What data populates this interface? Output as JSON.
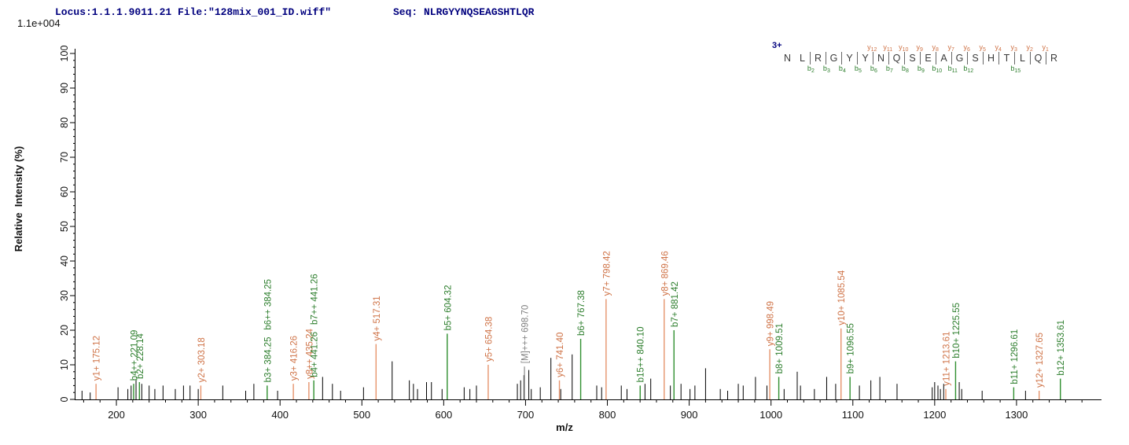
{
  "header": {
    "locus_file": "Locus:1.1.1.9011.21 File:\"128mix_001_ID.wiff\"",
    "seq": "Seq: NLRGYYNQSEAGSHTLQR"
  },
  "axes": {
    "x": {
      "label": "m/z",
      "min": 150,
      "max": 1400,
      "minor_step": 20,
      "major_ticks": [
        200,
        300,
        400,
        500,
        600,
        700,
        800,
        900,
        1000,
        1100,
        1200,
        1300
      ]
    },
    "y": {
      "label": "Relative  Intensity (%)",
      "scale_annotation": "1.1e+004",
      "min": 0,
      "max": 100,
      "major_step": 10,
      "minor_step": 2
    }
  },
  "colors": {
    "header": "#00007e",
    "axis": "#000000",
    "peak": "#000000",
    "y_ion": "#cf7347",
    "y_line": "#e6936b",
    "b_ion": "#2b7d2b",
    "b_line": "#2f8f2f",
    "precursor": "#9a9a9a",
    "precursor_label": "#808080"
  },
  "sequence_panel": {
    "charge": "3+",
    "residues": [
      "N",
      "L",
      "R",
      "G",
      "Y",
      "Y",
      "N",
      "Q",
      "S",
      "E",
      "A",
      "G",
      "S",
      "H",
      "T",
      "L",
      "Q",
      "R"
    ],
    "cleavages": [
      {
        "after": 2,
        "b": "b2"
      },
      {
        "after": 3,
        "b": "b3"
      },
      {
        "after": 4,
        "b": "b4"
      },
      {
        "after": 5,
        "b": "b5"
      },
      {
        "after": 6,
        "b": "b6",
        "y": "y12"
      },
      {
        "after": 7,
        "b": "b7",
        "y": "y11"
      },
      {
        "after": 8,
        "b": "b8",
        "y": "y10"
      },
      {
        "after": 9,
        "b": "b9",
        "y": "y9"
      },
      {
        "after": 10,
        "b": "b10",
        "y": "y8"
      },
      {
        "after": 11,
        "b": "b11",
        "y": "y7"
      },
      {
        "after": 12,
        "b": "b12",
        "y": "y6"
      },
      {
        "after": 13,
        "y": "y5"
      },
      {
        "after": 14,
        "y": "y4"
      },
      {
        "after": 15,
        "b": "b15",
        "y": "y3"
      },
      {
        "after": 16,
        "y": "y2"
      },
      {
        "after": 17,
        "y": "y1"
      }
    ]
  },
  "chart_data": {
    "type": "bar",
    "subtype": "ms2-fragment-spectrum",
    "title": "",
    "xlabel": "m/z",
    "ylabel": "Relative  Intensity (%)",
    "xlim": [
      150,
      1400
    ],
    "ylim": [
      0,
      100
    ],
    "intensity_scale_max": "1.1e+004",
    "legend": "none",
    "labeled_peaks": [
      {
        "label": "y1+ 175.12",
        "ion": "y",
        "mz": 175.12,
        "intensity": 4.5
      },
      {
        "label": "b4++ 221.09",
        "ion": "b",
        "mz": 221.09,
        "intensity": 4.5
      },
      {
        "label": "b2+ 228.14",
        "ion": "b",
        "mz": 228.14,
        "intensity": 5
      },
      {
        "label": "y2+ 303.18",
        "ion": "y",
        "mz": 303.18,
        "intensity": 4
      },
      {
        "label": "b3+ 384.25",
        "label2": "b6++ 384.25",
        "ion": "b",
        "mz": 384.25,
        "intensity": 4
      },
      {
        "label": "y3+ 416.26",
        "ion": "y",
        "mz": 416.26,
        "intensity": 4.5
      },
      {
        "label": "y8++ 435.24",
        "ion": "y",
        "mz": 435.24,
        "intensity": 5
      },
      {
        "label": "b4+ 441.26",
        "label2": "b7++ 441.26",
        "ion": "b",
        "mz": 441.26,
        "intensity": 5.5
      },
      {
        "label": "y4+ 517.31",
        "ion": "y",
        "mz": 517.31,
        "intensity": 16
      },
      {
        "label": "b5+ 604.32",
        "ion": "b",
        "mz": 604.32,
        "intensity": 19
      },
      {
        "label": "y5+ 654.38",
        "ion": "y",
        "mz": 654.38,
        "intensity": 10
      },
      {
        "label": "[M]+++ 698.70",
        "ion": "M",
        "mz": 698.7,
        "intensity": 9.5
      },
      {
        "label": "y6+ 741.40",
        "ion": "y",
        "mz": 741.4,
        "intensity": 5.5
      },
      {
        "label": "b6+ 767.38",
        "ion": "b",
        "mz": 767.38,
        "intensity": 17.5
      },
      {
        "label": "y7+ 798.42",
        "ion": "y",
        "mz": 798.42,
        "intensity": 29
      },
      {
        "label": "b15++ 840.10",
        "ion": "b",
        "mz": 840.1,
        "intensity": 4
      },
      {
        "label": "y8+ 869.46",
        "ion": "y",
        "mz": 869.46,
        "intensity": 29
      },
      {
        "label": "b7+ 881.42",
        "ion": "b",
        "mz": 881.42,
        "intensity": 20
      },
      {
        "label": "y9+ 998.49",
        "ion": "y",
        "mz": 998.49,
        "intensity": 14.5
      },
      {
        "label": "b8+ 1009.51",
        "ion": "b",
        "mz": 1009.51,
        "intensity": 6.5
      },
      {
        "label": "y10+ 1085.54",
        "ion": "y",
        "mz": 1085.54,
        "intensity": 20.5
      },
      {
        "label": "b9+ 1096.55",
        "ion": "b",
        "mz": 1096.55,
        "intensity": 6.5
      },
      {
        "label": "y11+ 1213.61",
        "ion": "y",
        "mz": 1213.61,
        "intensity": 3
      },
      {
        "label": "b10+ 1225.55",
        "ion": "b",
        "mz": 1225.55,
        "intensity": 11
      },
      {
        "label": "b11+ 1296.61",
        "ion": "b",
        "mz": 1296.61,
        "intensity": 3.5
      },
      {
        "label": "y12+ 1327.65",
        "ion": "y",
        "mz": 1327.65,
        "intensity": 2.5
      },
      {
        "label": "b12+ 1353.61",
        "ion": "b",
        "mz": 1353.61,
        "intensity": 6
      }
    ],
    "unlabeled_peaks": [
      [
        158,
        2.5
      ],
      [
        168,
        2
      ],
      [
        202,
        3.5
      ],
      [
        214,
        3
      ],
      [
        218,
        4
      ],
      [
        224,
        5.5
      ],
      [
        231,
        4.5
      ],
      [
        240,
        4
      ],
      [
        247,
        3
      ],
      [
        257,
        4
      ],
      [
        272,
        3
      ],
      [
        282,
        4
      ],
      [
        290,
        4
      ],
      [
        300,
        3
      ],
      [
        330,
        4
      ],
      [
        358,
        2.5
      ],
      [
        368,
        4.5
      ],
      [
        397,
        2.5
      ],
      [
        452,
        6.5
      ],
      [
        464,
        4.5
      ],
      [
        474,
        2.5
      ],
      [
        502,
        3.5
      ],
      [
        537,
        11
      ],
      [
        558,
        5.5
      ],
      [
        563,
        4.5
      ],
      [
        568,
        3
      ],
      [
        579,
        5
      ],
      [
        585,
        5
      ],
      [
        598,
        3
      ],
      [
        625,
        3.5
      ],
      [
        632,
        3
      ],
      [
        640,
        4
      ],
      [
        690,
        4.5
      ],
      [
        694,
        5.5
      ],
      [
        698,
        7
      ],
      [
        704,
        8.5
      ],
      [
        707,
        3
      ],
      [
        718,
        3.5
      ],
      [
        731,
        12
      ],
      [
        743,
        3
      ],
      [
        757,
        13
      ],
      [
        787,
        4
      ],
      [
        793,
        3.5
      ],
      [
        817,
        4
      ],
      [
        824,
        3
      ],
      [
        846,
        4.5
      ],
      [
        853,
        6
      ],
      [
        877,
        4
      ],
      [
        890,
        4.5
      ],
      [
        901,
        3
      ],
      [
        907,
        4
      ],
      [
        920,
        9
      ],
      [
        938,
        3
      ],
      [
        947,
        2.5
      ],
      [
        960,
        4.5
      ],
      [
        966,
        4
      ],
      [
        981,
        6.5
      ],
      [
        995,
        4
      ],
      [
        1016,
        3
      ],
      [
        1032,
        8
      ],
      [
        1036,
        4
      ],
      [
        1053,
        3
      ],
      [
        1068,
        6.5
      ],
      [
        1079,
        4.5
      ],
      [
        1108,
        4
      ],
      [
        1122,
        5.5
      ],
      [
        1133,
        6.5
      ],
      [
        1154,
        4.5
      ],
      [
        1197,
        3.5
      ],
      [
        1200,
        5
      ],
      [
        1204,
        4
      ],
      [
        1207,
        3
      ],
      [
        1211,
        4.5
      ],
      [
        1230,
        5
      ],
      [
        1233,
        3
      ],
      [
        1258,
        2.5
      ],
      [
        1311,
        2.5
      ]
    ]
  }
}
